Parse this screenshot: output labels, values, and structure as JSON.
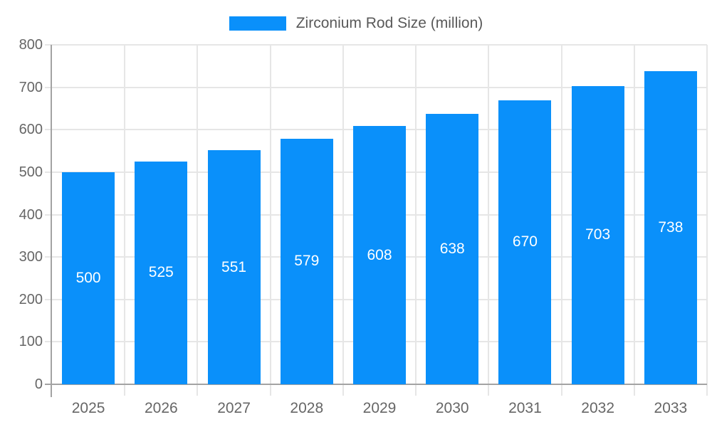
{
  "chart_data": {
    "type": "bar",
    "title": "",
    "legend_label": "Zirconium Rod Size (million)",
    "legend_position": "top",
    "categories": [
      "2025",
      "2026",
      "2027",
      "2028",
      "2029",
      "2030",
      "2031",
      "2032",
      "2033"
    ],
    "values": [
      500,
      525,
      551,
      579,
      608,
      638,
      670,
      703,
      738
    ],
    "xlabel": "",
    "ylabel": "",
    "ylim": [
      0,
      800
    ],
    "yticks": [
      0,
      100,
      200,
      300,
      400,
      500,
      600,
      700,
      800
    ],
    "grid": true,
    "colors": {
      "bar": "#0a90fa",
      "value_label": "#ffffff",
      "grid": "#e6e6e6",
      "axis": "#a3a3a3",
      "tick_label": "#666666",
      "legend_text": "#595959",
      "background": "#ffffff"
    }
  }
}
